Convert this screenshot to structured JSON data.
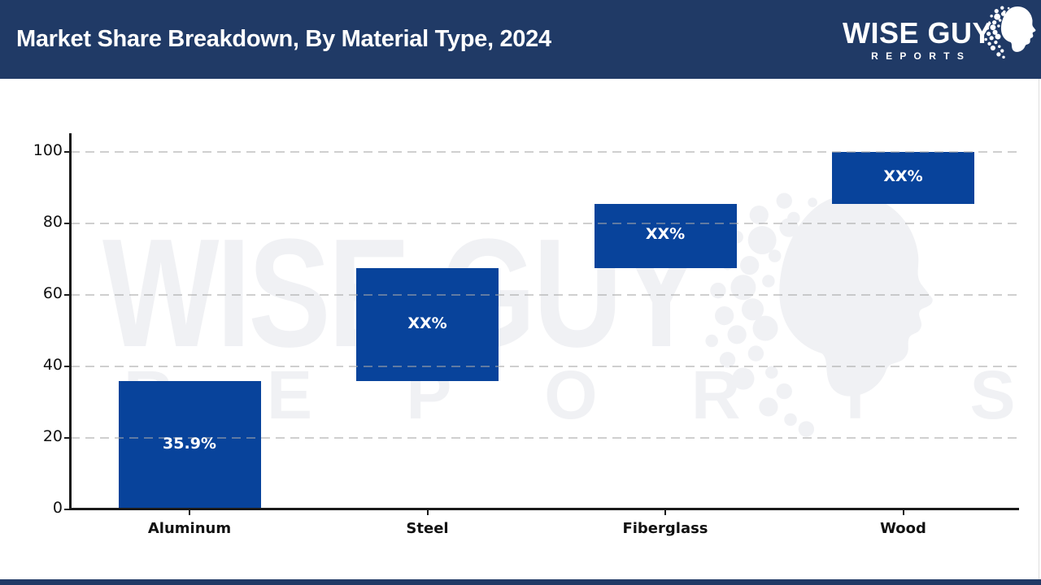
{
  "header": {
    "title": "Market Share Breakdown, By Material Type, 2024",
    "logo": {
      "line1": "WISE GUY",
      "line2": "R E P O R T S"
    }
  },
  "watermark": {
    "line1": "WISE GUY",
    "line2": "R E P O R T S"
  },
  "chart_data": {
    "type": "bar",
    "subtype": "waterfall",
    "title": "Market Share Breakdown, By Material Type, 2024",
    "categories": [
      "Aluminum",
      "Steel",
      "Fiberglass",
      "Wood"
    ],
    "bars": [
      {
        "category": "Aluminum",
        "base": 0,
        "top": 35.9,
        "label": "35.9%"
      },
      {
        "category": "Steel",
        "base": 35.9,
        "top": 67.5,
        "label": "XX%"
      },
      {
        "category": "Fiberglass",
        "base": 67.5,
        "top": 85.5,
        "label": "XX%"
      },
      {
        "category": "Wood",
        "base": 85.5,
        "top": 100,
        "label": "XX%"
      }
    ],
    "xlabel": "",
    "ylabel": "",
    "ylim": [
      0,
      100
    ],
    "yticks": [
      0,
      20,
      40,
      60,
      80,
      100
    ],
    "grid": "horizontal-dashed",
    "legend": null
  },
  "icons": {
    "logo_face": "face-profile-dots",
    "watermark_face": "face-profile-dots"
  },
  "colors": {
    "header_bg": "#203A66",
    "footer_bg": "#203A66",
    "bar_fill": "#08439B",
    "bar_label": "#FFFFFF",
    "axis": "#1A1A1A",
    "grid": "#BBBBBB",
    "watermark": "#F0F1F4"
  }
}
